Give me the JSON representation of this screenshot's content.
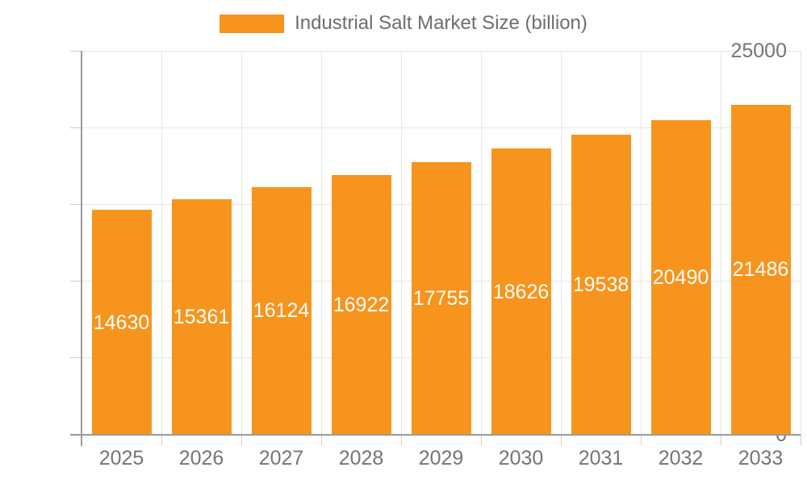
{
  "legend": {
    "label": "Industrial Salt Market Size (billion)"
  },
  "chart_data": {
    "type": "bar",
    "title": "Industrial Salt Market Size (billion)",
    "categories": [
      "2025",
      "2026",
      "2027",
      "2028",
      "2029",
      "2030",
      "2031",
      "2032",
      "2033"
    ],
    "values": [
      14630,
      15361,
      16124,
      16922,
      17755,
      18626,
      19538,
      20490,
      21486
    ],
    "xlabel": "",
    "ylabel": "",
    "ylim": [
      0,
      25000
    ],
    "yticks": [
      0,
      5000,
      10000,
      15000,
      20000,
      25000
    ],
    "grid": true,
    "legend_position": "top",
    "value_labels": "inside-center",
    "colors": {
      "bar": "#F7941E",
      "value_label": "#FFFFFF",
      "axis_text": "#757575",
      "legend_text": "#6E6E6E",
      "grid_line": "#E6E6E6",
      "axis_line": "#9A9A9A",
      "tick_line": "#CCCCCC",
      "background": "#FFFFFF"
    }
  }
}
